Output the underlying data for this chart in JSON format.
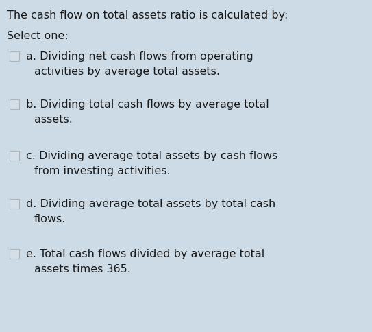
{
  "background_color": "#ccdbe6",
  "title": "The cash flow on total assets ratio is calculated by:",
  "select_label": "Select one:",
  "options": [
    {
      "letter": "a.",
      "line1": " Dividing net cash flows from operating",
      "line2": "activities by average total assets."
    },
    {
      "letter": "b.",
      "line1": " Dividing total cash flows by average total",
      "line2": "assets."
    },
    {
      "letter": "c.",
      "line1": " Dividing average total assets by cash flows",
      "line2": "from investing activities."
    },
    {
      "letter": "d.",
      "line1": " Dividing average total assets by total cash",
      "line2": "flows."
    },
    {
      "letter": "e.",
      "line1": " Total cash flows divided by average total",
      "line2": "assets times 365."
    }
  ],
  "title_fontsize": 11.5,
  "select_fontsize": 11.5,
  "option_fontsize": 11.5,
  "text_color": "#1a1a1a",
  "checkbox_facecolor": "#d4dfe8",
  "checkbox_edgecolor": "#aab5bc",
  "fig_width": 5.43,
  "fig_height": 4.85,
  "dpi": 100
}
